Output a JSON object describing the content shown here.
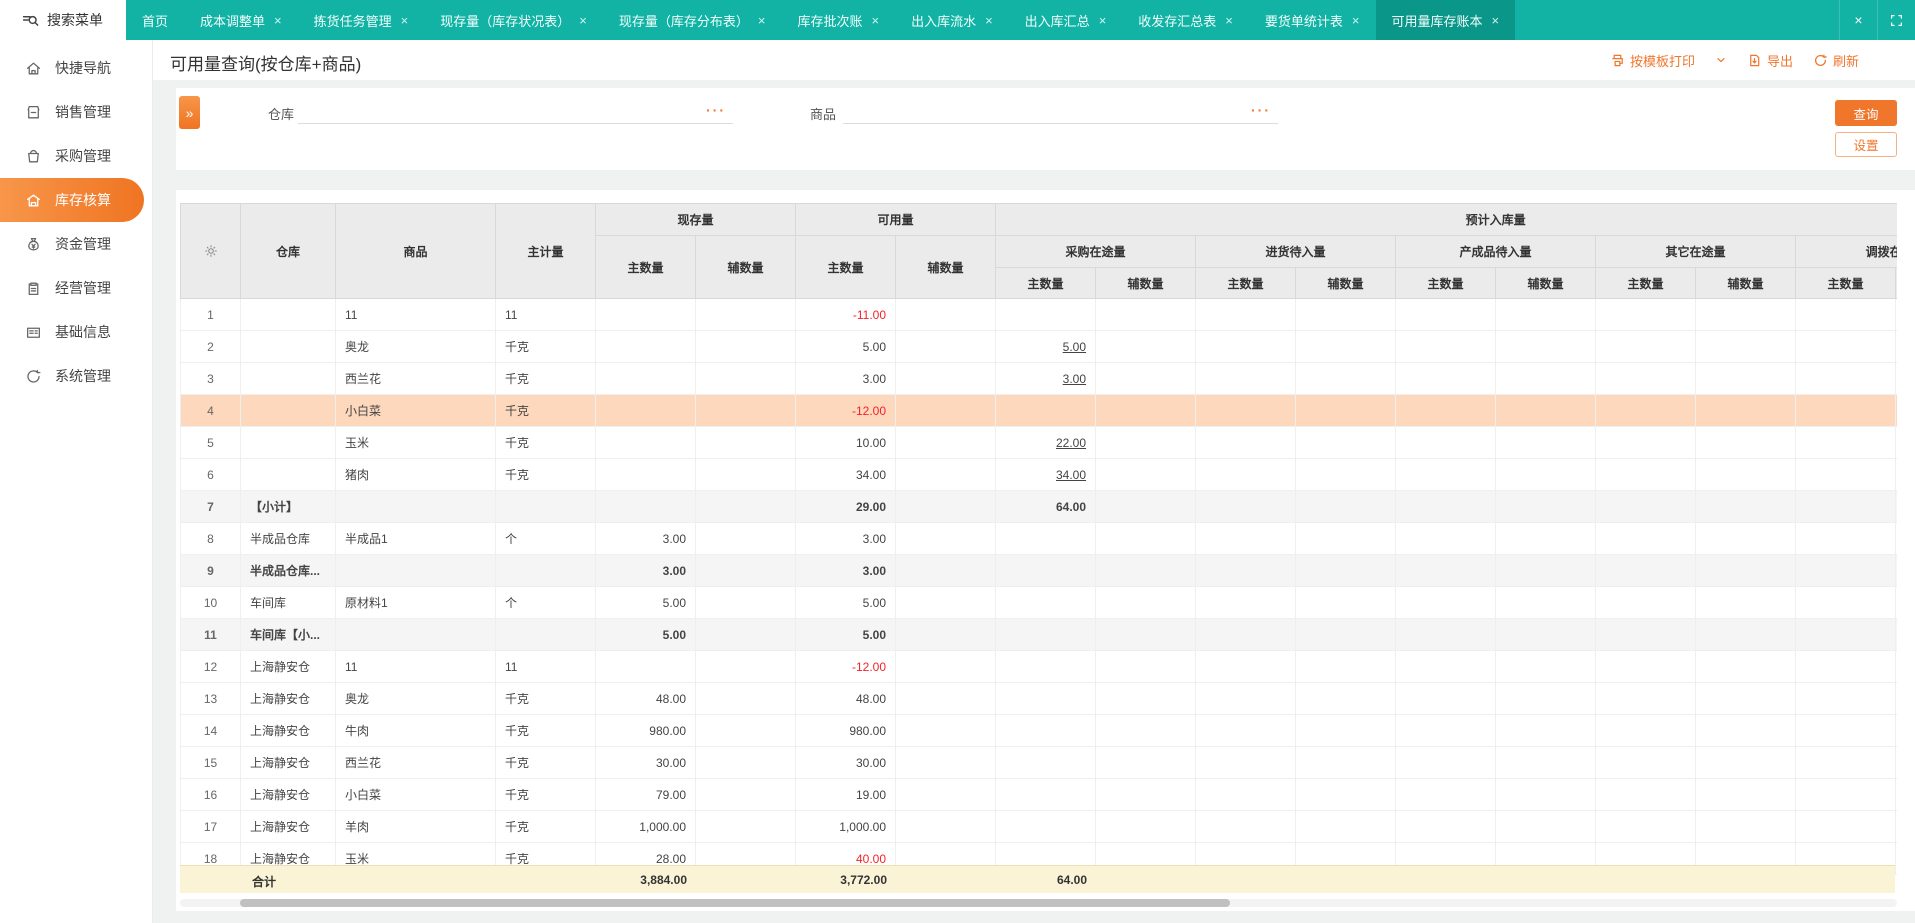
{
  "search_menu": {
    "label": "搜索菜单"
  },
  "tabs": {
    "items": [
      {
        "name": "tab-home",
        "label": "首页",
        "closable": false,
        "active": false
      },
      {
        "name": "tab-cost-adjustment",
        "label": "成本调整单",
        "closable": true,
        "active": false
      },
      {
        "name": "tab-picking-task",
        "label": "拣货任务管理",
        "closable": true,
        "active": false
      },
      {
        "name": "tab-onhand-status",
        "label": "现存量（库存状况表）",
        "closable": true,
        "active": false
      },
      {
        "name": "tab-onhand-distribution",
        "label": "现存量（库存分布表）",
        "closable": true,
        "active": false
      },
      {
        "name": "tab-stock-batch",
        "label": "库存批次账",
        "closable": true,
        "active": false
      },
      {
        "name": "tab-inout-flow",
        "label": "出入库流水",
        "closable": true,
        "active": false
      },
      {
        "name": "tab-inout-summary",
        "label": "出入库汇总",
        "closable": true,
        "active": false
      },
      {
        "name": "tab-receipt-summary",
        "label": "收发存汇总表",
        "closable": true,
        "active": false
      },
      {
        "name": "tab-demand-stats",
        "label": "要货单统计表",
        "closable": true,
        "active": false
      },
      {
        "name": "tab-available-ledger",
        "label": "可用量库存账本",
        "closable": true,
        "active": true
      }
    ]
  },
  "sidebar": {
    "items": [
      {
        "name": "sidebar-item-quick-nav",
        "icon": "home-icon",
        "label": "快捷导航",
        "active": false
      },
      {
        "name": "sidebar-item-sales",
        "icon": "shop-icon",
        "label": "销售管理",
        "active": false
      },
      {
        "name": "sidebar-item-purchase",
        "icon": "bag-icon",
        "label": "采购管理",
        "active": false
      },
      {
        "name": "sidebar-item-inventory",
        "icon": "warehouse-icon",
        "label": "库存核算",
        "active": true
      },
      {
        "name": "sidebar-item-funds",
        "icon": "moneybag-icon",
        "label": "资金管理",
        "active": false
      },
      {
        "name": "sidebar-item-operations",
        "icon": "clipboard-icon",
        "label": "经营管理",
        "active": false
      },
      {
        "name": "sidebar-item-basic-info",
        "icon": "idcard-icon",
        "label": "基础信息",
        "active": false
      },
      {
        "name": "sidebar-item-system",
        "icon": "system-icon",
        "label": "系统管理",
        "active": false
      }
    ]
  },
  "page": {
    "title": "可用量查询(按仓库+商品)"
  },
  "toolbar": {
    "print": "按模板打印",
    "export": "导出",
    "refresh": "刷新"
  },
  "filters": {
    "warehouse_label": "仓库",
    "product_label": "商品",
    "picker_ellipsis": "···",
    "query_button": "查询",
    "settings_button": "设置"
  },
  "table": {
    "header": {
      "warehouse": "仓库",
      "product": "商品",
      "unit": "主计量",
      "group_onhand": "现存量",
      "group_available": "可用量",
      "group_expected": "预计入库量",
      "subgroups": [
        "采购在途量",
        "进货待入量",
        "产成品待入量",
        "其它在途量",
        "调拨在途量"
      ],
      "qty_main": "主数量",
      "qty_aux": "辅数量"
    },
    "rows": [
      {
        "num": "1",
        "warehouse": "",
        "product": "11",
        "unit": "11",
        "style": "normal",
        "q": [
          "",
          "",
          {
            "v": "-11.00",
            "neg": true
          },
          "",
          "",
          "",
          "",
          "",
          "",
          "",
          "",
          "",
          ""
        ]
      },
      {
        "num": "2",
        "warehouse": "",
        "product": "奥龙",
        "unit": "千克",
        "style": "normal",
        "q": [
          "",
          "",
          "5.00",
          "",
          {
            "v": "5.00",
            "link": true
          },
          "",
          "",
          "",
          "",
          "",
          "",
          "",
          ""
        ]
      },
      {
        "num": "3",
        "warehouse": "",
        "product": "西兰花",
        "unit": "千克",
        "style": "normal",
        "q": [
          "",
          "",
          "3.00",
          "",
          {
            "v": "3.00",
            "link": true
          },
          "",
          "",
          "",
          "",
          "",
          "",
          "",
          ""
        ]
      },
      {
        "num": "4",
        "warehouse": "",
        "product": "小白菜",
        "unit": "千克",
        "style": "highlight",
        "q": [
          "",
          "",
          {
            "v": "-12.00",
            "neg": true
          },
          "",
          "",
          "",
          "",
          "",
          "",
          "",
          "",
          "",
          ""
        ]
      },
      {
        "num": "5",
        "warehouse": "",
        "product": "玉米",
        "unit": "千克",
        "style": "normal",
        "q": [
          "",
          "",
          "10.00",
          "",
          {
            "v": "22.00",
            "link": true
          },
          "",
          "",
          "",
          "",
          "",
          "",
          "",
          ""
        ]
      },
      {
        "num": "6",
        "warehouse": "",
        "product": "猪肉",
        "unit": "千克",
        "style": "normal",
        "q": [
          "",
          "",
          "34.00",
          "",
          {
            "v": "34.00",
            "link": true
          },
          "",
          "",
          "",
          "",
          "",
          "",
          "",
          ""
        ]
      },
      {
        "num": "7",
        "warehouse": "【小计】",
        "product": "",
        "unit": "",
        "style": "subtotal",
        "q": [
          "",
          "",
          "29.00",
          "",
          "64.00",
          "",
          "",
          "",
          "",
          "",
          "",
          "",
          ""
        ]
      },
      {
        "num": "8",
        "warehouse": "半成品仓库",
        "product": "半成品1",
        "unit": "个",
        "style": "normal",
        "q": [
          "3.00",
          "",
          "3.00",
          "",
          "",
          "",
          "",
          "",
          "",
          "",
          "",
          "",
          ""
        ]
      },
      {
        "num": "9",
        "warehouse": "半成品仓库...",
        "product": "",
        "unit": "",
        "style": "subtotal",
        "q": [
          "3.00",
          "",
          "3.00",
          "",
          "",
          "",
          "",
          "",
          "",
          "",
          "",
          "",
          ""
        ]
      },
      {
        "num": "10",
        "warehouse": "车间库",
        "product": "原材料1",
        "unit": "个",
        "style": "normal",
        "q": [
          "5.00",
          "",
          "5.00",
          "",
          "",
          "",
          "",
          "",
          "",
          "",
          "",
          "",
          ""
        ]
      },
      {
        "num": "11",
        "warehouse": "车间库【小...",
        "product": "",
        "unit": "",
        "style": "subtotal",
        "q": [
          "5.00",
          "",
          "5.00",
          "",
          "",
          "",
          "",
          "",
          "",
          "",
          "",
          "",
          ""
        ]
      },
      {
        "num": "12",
        "warehouse": "上海静安仓",
        "product": "11",
        "unit": "11",
        "style": "normal",
        "q": [
          "",
          "",
          {
            "v": "-12.00",
            "neg": true
          },
          "",
          "",
          "",
          "",
          "",
          "",
          "",
          "",
          "",
          ""
        ]
      },
      {
        "num": "13",
        "warehouse": "上海静安仓",
        "product": "奥龙",
        "unit": "千克",
        "style": "normal",
        "q": [
          "48.00",
          "",
          "48.00",
          "",
          "",
          "",
          "",
          "",
          "",
          "",
          "",
          "",
          ""
        ]
      },
      {
        "num": "14",
        "warehouse": "上海静安仓",
        "product": "牛肉",
        "unit": "千克",
        "style": "normal",
        "q": [
          "980.00",
          "",
          "980.00",
          "",
          "",
          "",
          "",
          "",
          "",
          "",
          "",
          "",
          ""
        ]
      },
      {
        "num": "15",
        "warehouse": "上海静安仓",
        "product": "西兰花",
        "unit": "千克",
        "style": "normal",
        "q": [
          "30.00",
          "",
          "30.00",
          "",
          "",
          "",
          "",
          "",
          "",
          "",
          "",
          "",
          ""
        ]
      },
      {
        "num": "16",
        "warehouse": "上海静安仓",
        "product": "小白菜",
        "unit": "千克",
        "style": "normal",
        "q": [
          "79.00",
          "",
          "19.00",
          "",
          "",
          "",
          "",
          "",
          "",
          "",
          "",
          "",
          ""
        ]
      },
      {
        "num": "17",
        "warehouse": "上海静安仓",
        "product": "羊肉",
        "unit": "千克",
        "style": "normal",
        "q": [
          "1,000.00",
          "",
          "1,000.00",
          "",
          "",
          "",
          "",
          "",
          "",
          "",
          "",
          "",
          ""
        ]
      },
      {
        "num": "18",
        "warehouse": "上海静安仓",
        "product": "玉米",
        "unit": "千克",
        "style": "normal",
        "q": [
          "28.00",
          "",
          {
            "v": "40.00",
            "neg": true
          },
          "",
          "",
          "",
          "",
          "",
          "",
          "",
          "",
          "",
          ""
        ]
      }
    ],
    "total": {
      "label": "合计",
      "onhand_main": "3,884.00",
      "available_main": "3,772.00",
      "purchase_main": "64.00"
    }
  },
  "colors": {
    "teal": "#12b3a4",
    "teal_active_tab": "#0a9688",
    "accent_orange": "#f0762c",
    "highlight_row": "#fdd8bd",
    "subtotal_row": "#f5f5f5",
    "total_row": "#fbf3d6",
    "negative_red": "#f5222d"
  }
}
